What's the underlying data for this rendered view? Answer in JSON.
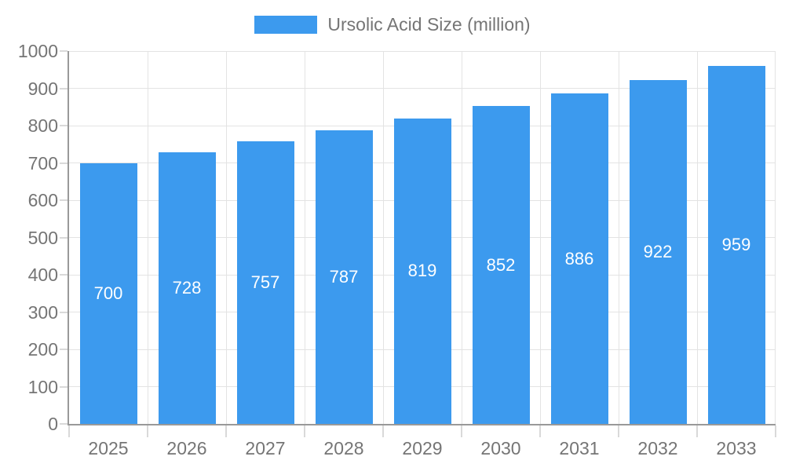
{
  "legend": {
    "label": "Ursolic Acid Size (million)"
  },
  "colors": {
    "bar": "#3C9AEE",
    "bar_value_label": "#ffffff",
    "gridline": "#e3e3e3",
    "axis_line": "#999999",
    "tick": "#d9d9d9",
    "axis_label": "#757575",
    "legend_label": "#757575",
    "background": "#ffffff"
  },
  "chart_data": {
    "type": "bar",
    "categories": [
      "2025",
      "2026",
      "2027",
      "2028",
      "2029",
      "2030",
      "2031",
      "2032",
      "2033"
    ],
    "series": [
      {
        "name": "Ursolic Acid Size (million)",
        "values": [
          700,
          728,
          757,
          787,
          819,
          852,
          886,
          922,
          959
        ]
      }
    ],
    "title": "",
    "xlabel": "",
    "ylabel": "",
    "ylim": [
      0,
      1000
    ],
    "ytick_step": 100,
    "grid": true,
    "legend_position": "top",
    "bar_width_ratio": 0.73,
    "value_labels": "centered-in-bar"
  }
}
